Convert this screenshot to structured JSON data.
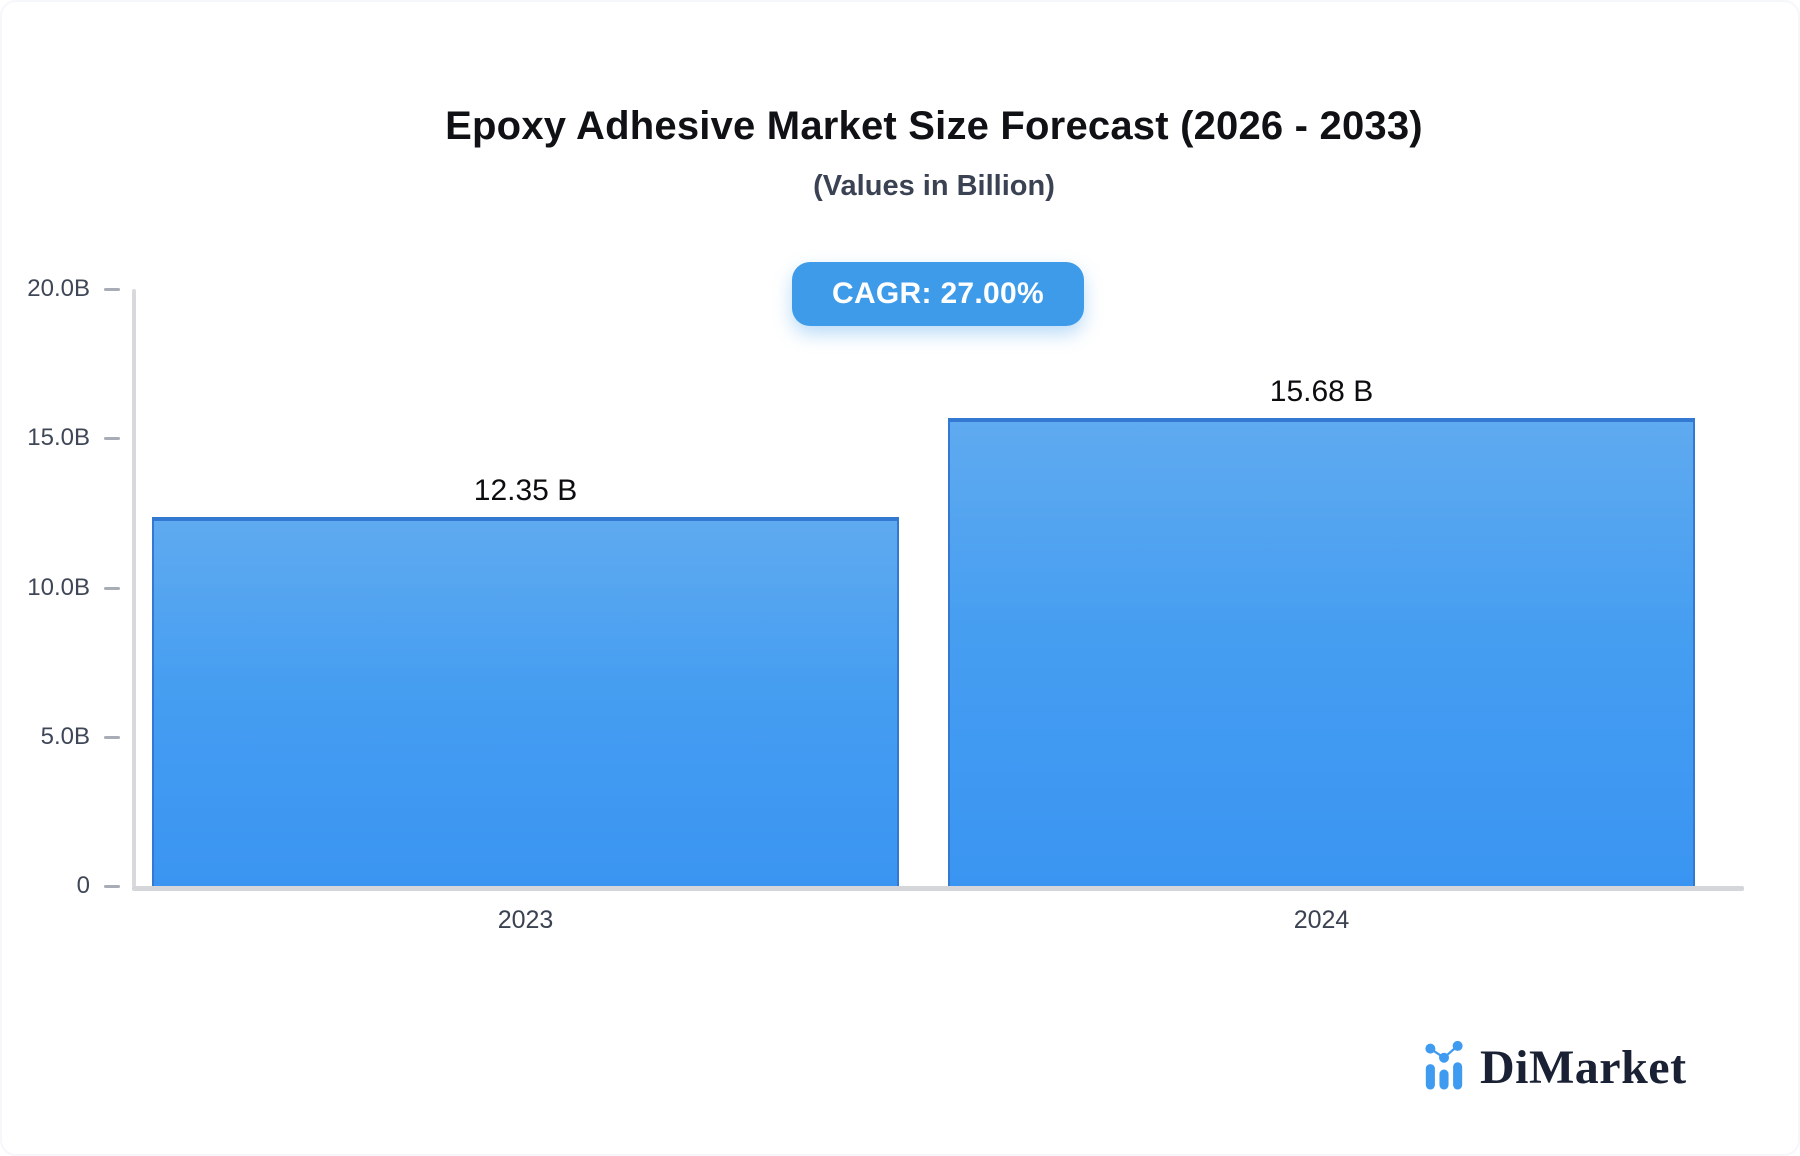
{
  "header": {
    "title": "Epoxy Adhesive Market Size Forecast (2026 - 2033)",
    "subtitle": "(Values in Billion)",
    "cagr_label": "CAGR: 27.00%"
  },
  "footer": {
    "logo_text": "DiMarket",
    "logo_icon": "bar-chart-with-dots-icon"
  },
  "colors": {
    "bar_fill_top": "#5FAAF0",
    "bar_fill_bottom": "#3A95F2",
    "bar_border": "#3379D2",
    "badge_bg": "#3D9BEA",
    "badge_text": "#FFFFFF",
    "axis_line": "#D7D9DD",
    "baseline": "#D4D6DA",
    "tick_mark": "#A8ACB4",
    "axis_label": "#3F4757",
    "value_label": "#0C0D10",
    "logo_navy": "#1A2134",
    "logo_blue": "#3F9BF0"
  },
  "chart_data": {
    "type": "bar",
    "title": "Epoxy Adhesive Market Size Forecast (2026 - 2033)",
    "subtitle": "(Values in Billion)",
    "annotation": "CAGR: 27.00%",
    "unit": "Billion",
    "categories": [
      "2023",
      "2024"
    ],
    "values": [
      12.35,
      15.68
    ],
    "value_labels": [
      "12.35 B",
      "15.68 B"
    ],
    "ylim": [
      0,
      20
    ],
    "y_ticks": [
      {
        "label": "20.0B",
        "value": 20
      },
      {
        "label": "15.0B",
        "value": 15
      },
      {
        "label": "10.0B",
        "value": 10
      },
      {
        "label": "5.0B",
        "value": 5
      },
      {
        "label": "0",
        "value": 0
      }
    ],
    "grid": false,
    "legend": "none",
    "bar_color": "#3A95F2"
  }
}
